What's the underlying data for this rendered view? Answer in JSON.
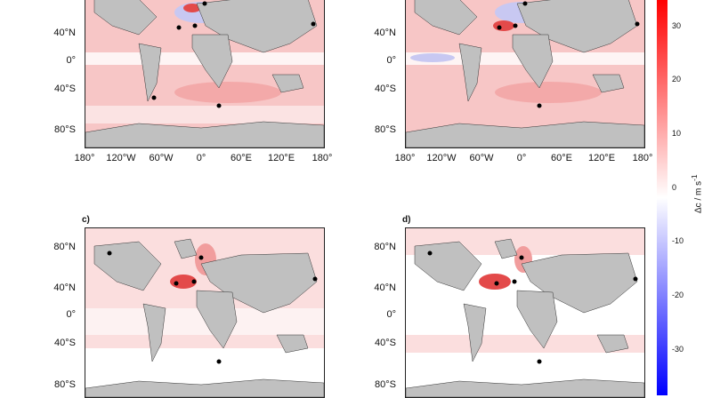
{
  "panels": [
    {
      "id": "a",
      "label": "",
      "top_visible": false
    },
    {
      "id": "b",
      "label": "",
      "top_visible": false
    },
    {
      "id": "c",
      "label": "c)"
    },
    {
      "id": "d",
      "label": "d)"
    }
  ],
  "y_ticks": [
    "80°N",
    "40°N",
    "0°",
    "40°S",
    "80°S"
  ],
  "x_ticks": [
    "180°",
    "120°W",
    "60°W",
    "0°",
    "60°E",
    "120°E",
    "180°"
  ],
  "colorbar": {
    "title": "Δc / m s",
    "title_sup": "-1",
    "ticks": [
      "30",
      "20",
      "10",
      "0",
      "-10",
      "-20",
      "-30"
    ],
    "range": [
      -35,
      35
    ],
    "colors": {
      "max": "#ff0000",
      "zero": "#ffffff",
      "min": "#0000ff"
    }
  },
  "colors": {
    "land": "#c0c0c0",
    "coast": "#333333",
    "warm": "#f6b7b7",
    "warm_strong": "#e34a4a",
    "cool": "#b8b8f0",
    "station": "#000000"
  }
}
